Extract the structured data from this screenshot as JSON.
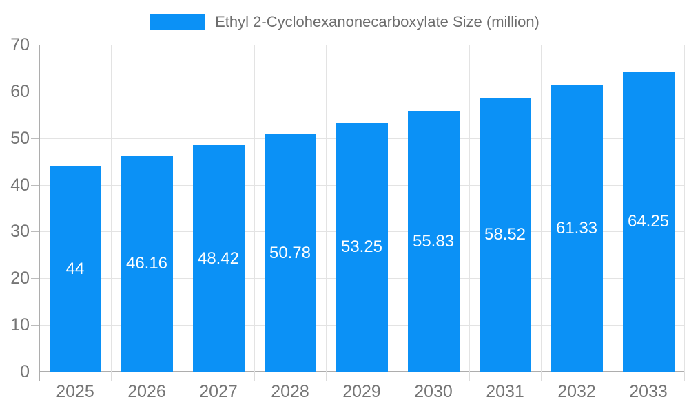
{
  "colors": {
    "bar": "#0b91f6",
    "grid": "#e3e3e3",
    "axis": "#adadad",
    "y_tick": "#bcbcbc",
    "x_tick": "#dcdcdc",
    "tick_label": "#757575",
    "title": "#6d6d6d",
    "bar_label": "#ffffff",
    "background": "#ffffff"
  },
  "chart_data": {
    "type": "bar",
    "title": "Ethyl 2-Cyclohexanonecarboxylate Size (million)",
    "legend": [
      "Ethyl 2-Cyclohexanonecarboxylate Size (million)"
    ],
    "legend_position": "top",
    "categories": [
      "2025",
      "2026",
      "2027",
      "2028",
      "2029",
      "2030",
      "2031",
      "2032",
      "2033"
    ],
    "values": [
      44,
      46.16,
      48.42,
      50.78,
      53.25,
      55.83,
      58.52,
      61.33,
      64.25
    ],
    "value_labels": [
      "44",
      "46.16",
      "48.42",
      "50.78",
      "53.25",
      "55.83",
      "58.52",
      "61.33",
      "64.25"
    ],
    "xlabel": "",
    "ylabel": "",
    "ylim": [
      0,
      70
    ],
    "y_ticks": [
      0,
      10,
      20,
      30,
      40,
      50,
      60,
      70
    ],
    "grid": true
  }
}
